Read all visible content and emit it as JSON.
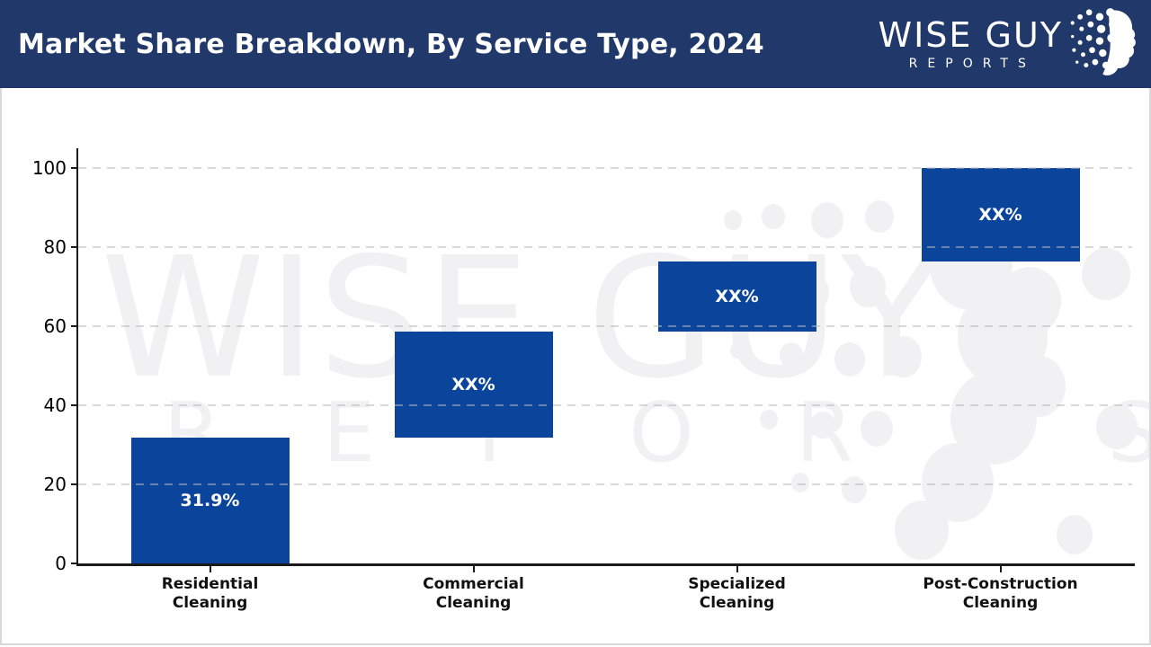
{
  "header": {
    "title": "Market Share Breakdown, By Service Type, 2024",
    "logo": {
      "primary": "WISE GUY",
      "secondary": "REPORTS"
    }
  },
  "watermark": {
    "primary": "WISE GUY",
    "secondary": "R E P O R T S"
  },
  "colors": {
    "header_bg": "#20386a",
    "bar": "#0a449b",
    "bar_label": "#ffffff",
    "axis": "#1a1a1a",
    "gridline": "#d9d9d9",
    "watermark": "#f1f1f4"
  },
  "chart_data": {
    "type": "bar",
    "subtype": "waterfall",
    "title": "Market Share Breakdown, By Service Type, 2024",
    "xlabel": "",
    "ylabel": "",
    "ylim": [
      0,
      100
    ],
    "yticks": [
      0,
      20,
      40,
      60,
      80,
      100
    ],
    "grid": "horizontal-dashed",
    "legend": false,
    "categories": [
      "Residential Cleaning",
      "Commercial Cleaning",
      "Specialized Cleaning",
      "Post-Construction Cleaning"
    ],
    "category_lines": [
      [
        "Residential",
        "Cleaning"
      ],
      [
        "Commercial",
        "Cleaning"
      ],
      [
        "Specialized",
        "Cleaning"
      ],
      [
        "Post-Construction",
        "Cleaning"
      ]
    ],
    "segments": [
      {
        "category": "Residential Cleaning",
        "start": 0,
        "end": 31.9,
        "value": 31.9,
        "label": "31.9%"
      },
      {
        "category": "Commercial Cleaning",
        "start": 31.9,
        "end": 58.6,
        "value": 26.7,
        "label": "XX%"
      },
      {
        "category": "Specialized Cleaning",
        "start": 58.6,
        "end": 76.3,
        "value": 17.7,
        "label": "XX%"
      },
      {
        "category": "Post-Construction Cleaning",
        "start": 76.3,
        "end": 100,
        "value": 23.7,
        "label": "XX%"
      }
    ]
  }
}
